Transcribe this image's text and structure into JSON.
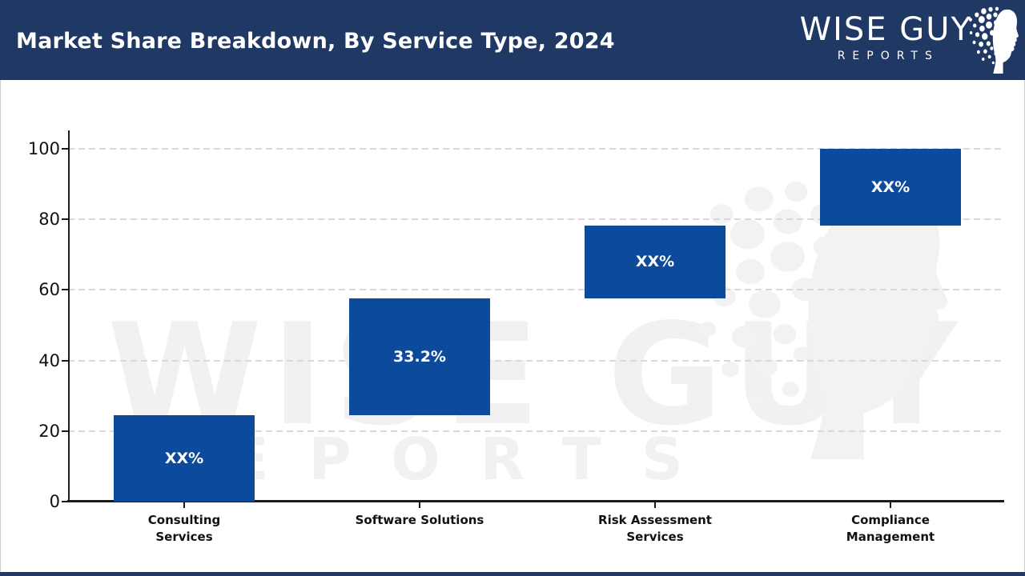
{
  "header": {
    "title": "Market Share Breakdown, By Service Type, 2024",
    "logo": {
      "wordmark": "WISE GUY",
      "subtitle": "REPORTS"
    }
  },
  "watermark": {
    "wordmark": "WISE GUY",
    "subtitle": "REPORTS"
  },
  "style": {
    "header_bg": "#1f3864",
    "footer_bg": "#1f3864",
    "bar_color": "#0c4a9c",
    "grid_color": "#d9d9d9",
    "axis_color": "#1a1a1a",
    "value_label_color": "#ffffff",
    "watermark_color": "#f1f1f4"
  },
  "chart_data": {
    "type": "bar",
    "variant": "waterfall-segment-breakdown",
    "title": "Market Share Breakdown, By Service Type, 2024",
    "categories": [
      "Consulting Services",
      "Software Solutions",
      "Risk Assessment Services",
      "Compliance Management"
    ],
    "category_label_lines": [
      [
        "Consulting",
        "Services"
      ],
      [
        "Software Solutions"
      ],
      [
        "Risk Assessment",
        "Services"
      ],
      [
        "Compliance",
        "Management"
      ]
    ],
    "bars": [
      {
        "category": "Consulting Services",
        "start": 0,
        "end": 24.5,
        "label": "XX%"
      },
      {
        "category": "Software Solutions",
        "start": 24.5,
        "end": 57.7,
        "label": "33.2%",
        "value": 33.2
      },
      {
        "category": "Risk Assessment Services",
        "start": 57.7,
        "end": 78.2,
        "label": "XX%"
      },
      {
        "category": "Compliance Management",
        "start": 78.2,
        "end": 100,
        "label": "XX%"
      }
    ],
    "ylim": [
      0,
      105
    ],
    "yticks": [
      0,
      20,
      40,
      60,
      80,
      100
    ],
    "grid": "horizontal-dashed",
    "legend": "none",
    "xlabel": "",
    "ylabel": ""
  }
}
